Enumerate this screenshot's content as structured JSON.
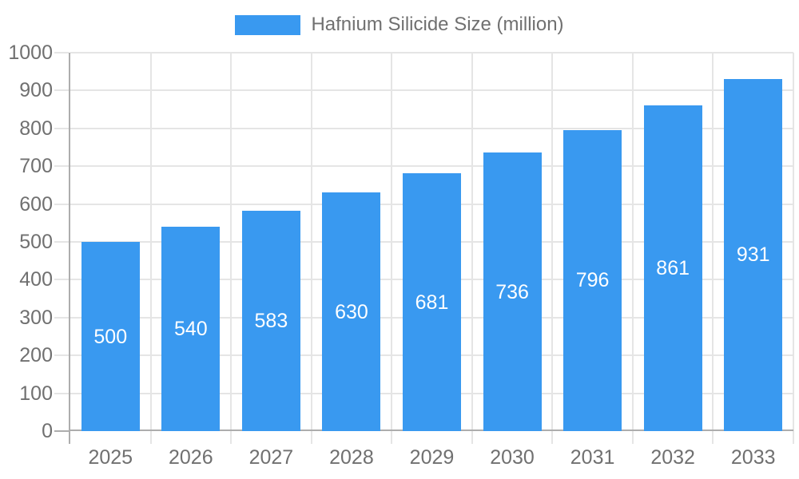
{
  "legend": {
    "label": "Hafnium Silicide Size (million)"
  },
  "colors": {
    "bar": "#3999f0",
    "axis_line": "#adadad",
    "grid_line": "#e5e5e5",
    "axis_text": "#707070",
    "value_text": "#ffffff",
    "background": "#ffffff"
  },
  "chart_data": {
    "type": "bar",
    "title": "",
    "legend_entries": [
      "Hafnium Silicide Size (million)"
    ],
    "legend_position": "top-center",
    "categories": [
      "2025",
      "2026",
      "2027",
      "2028",
      "2029",
      "2030",
      "2031",
      "2032",
      "2033"
    ],
    "series": [
      {
        "name": "Hafnium Silicide Size (million)",
        "values": [
          500,
          540,
          583,
          630,
          681,
          736,
          796,
          861,
          931
        ]
      }
    ],
    "value_labels": [
      500,
      540,
      583,
      630,
      681,
      736,
      796,
      861,
      931
    ],
    "value_label_position": "inside-center",
    "xlabel": "",
    "ylabel": "",
    "ylim": [
      0,
      1000
    ],
    "y_tick_interval": 100,
    "y_ticks": [
      0,
      100,
      200,
      300,
      400,
      500,
      600,
      700,
      800,
      900,
      1000
    ],
    "grid": true
  }
}
